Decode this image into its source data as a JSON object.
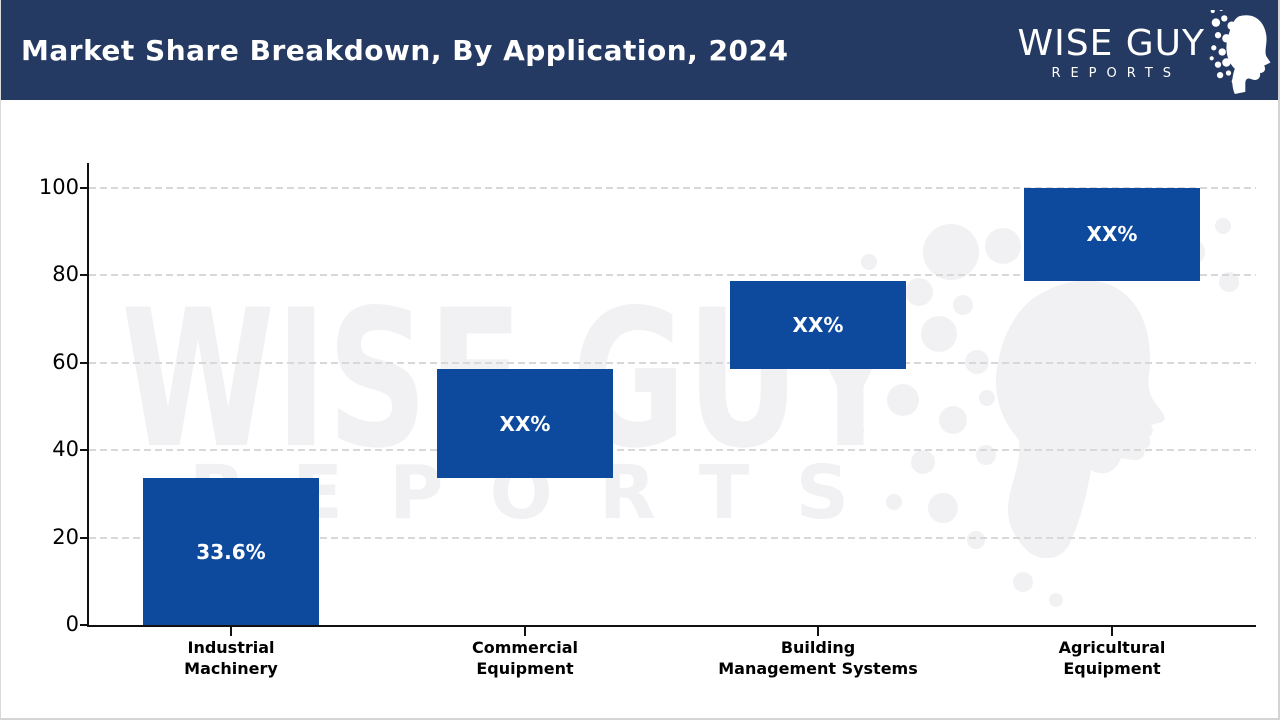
{
  "header": {
    "title": "Market Share Breakdown, By Application, 2024",
    "logo": {
      "line1": "WISE GUY",
      "line2": "REPORTS"
    }
  },
  "watermark": {
    "line1": "WISE GUY",
    "line2": "REPORTS"
  },
  "colors": {
    "header_bg": "#253a63",
    "bar": "#0d4a9e",
    "bar_label": "#ffffff",
    "grid": "#d8d8d8",
    "axis": "#111111",
    "watermark": "#f1f1f3",
    "page_border": "#d4d4d4"
  },
  "chart_data": {
    "type": "bar",
    "subtype": "waterfall (stacked market-share breakdown)",
    "title": "Market Share Breakdown, By Application, 2024",
    "categories": [
      "Industrial Machinery",
      "Commercial Equipment",
      "Building Management Systems",
      "Agricultural Equipment"
    ],
    "category_lines": [
      [
        "Industrial",
        "Machinery"
      ],
      [
        "Commercial",
        "Equipment"
      ],
      [
        "Building",
        "Management Systems"
      ],
      [
        "Agricultural",
        "Equipment"
      ]
    ],
    "series": [
      {
        "name": "Market share (%)",
        "segments": [
          {
            "category": "Industrial Machinery",
            "start": 0,
            "end": 33.6,
            "label": "33.6%",
            "implied_value": 33.6
          },
          {
            "category": "Commercial Equipment",
            "start": 33.6,
            "end": 58.5,
            "label": "XX%",
            "implied_value": 24.9
          },
          {
            "category": "Building Management Systems",
            "start": 58.5,
            "end": 78.6,
            "label": "XX%",
            "implied_value": 20.1
          },
          {
            "category": "Agricultural Equipment",
            "start": 78.6,
            "end": 100,
            "label": "XX%",
            "implied_value": 21.4
          }
        ]
      }
    ],
    "xlabel": "",
    "ylabel": "",
    "ylim": [
      0,
      100
    ],
    "yticks": [
      0,
      20,
      40,
      60,
      80,
      100
    ],
    "grid": "horizontal dashed gridlines at each y tick",
    "legend": "none"
  }
}
